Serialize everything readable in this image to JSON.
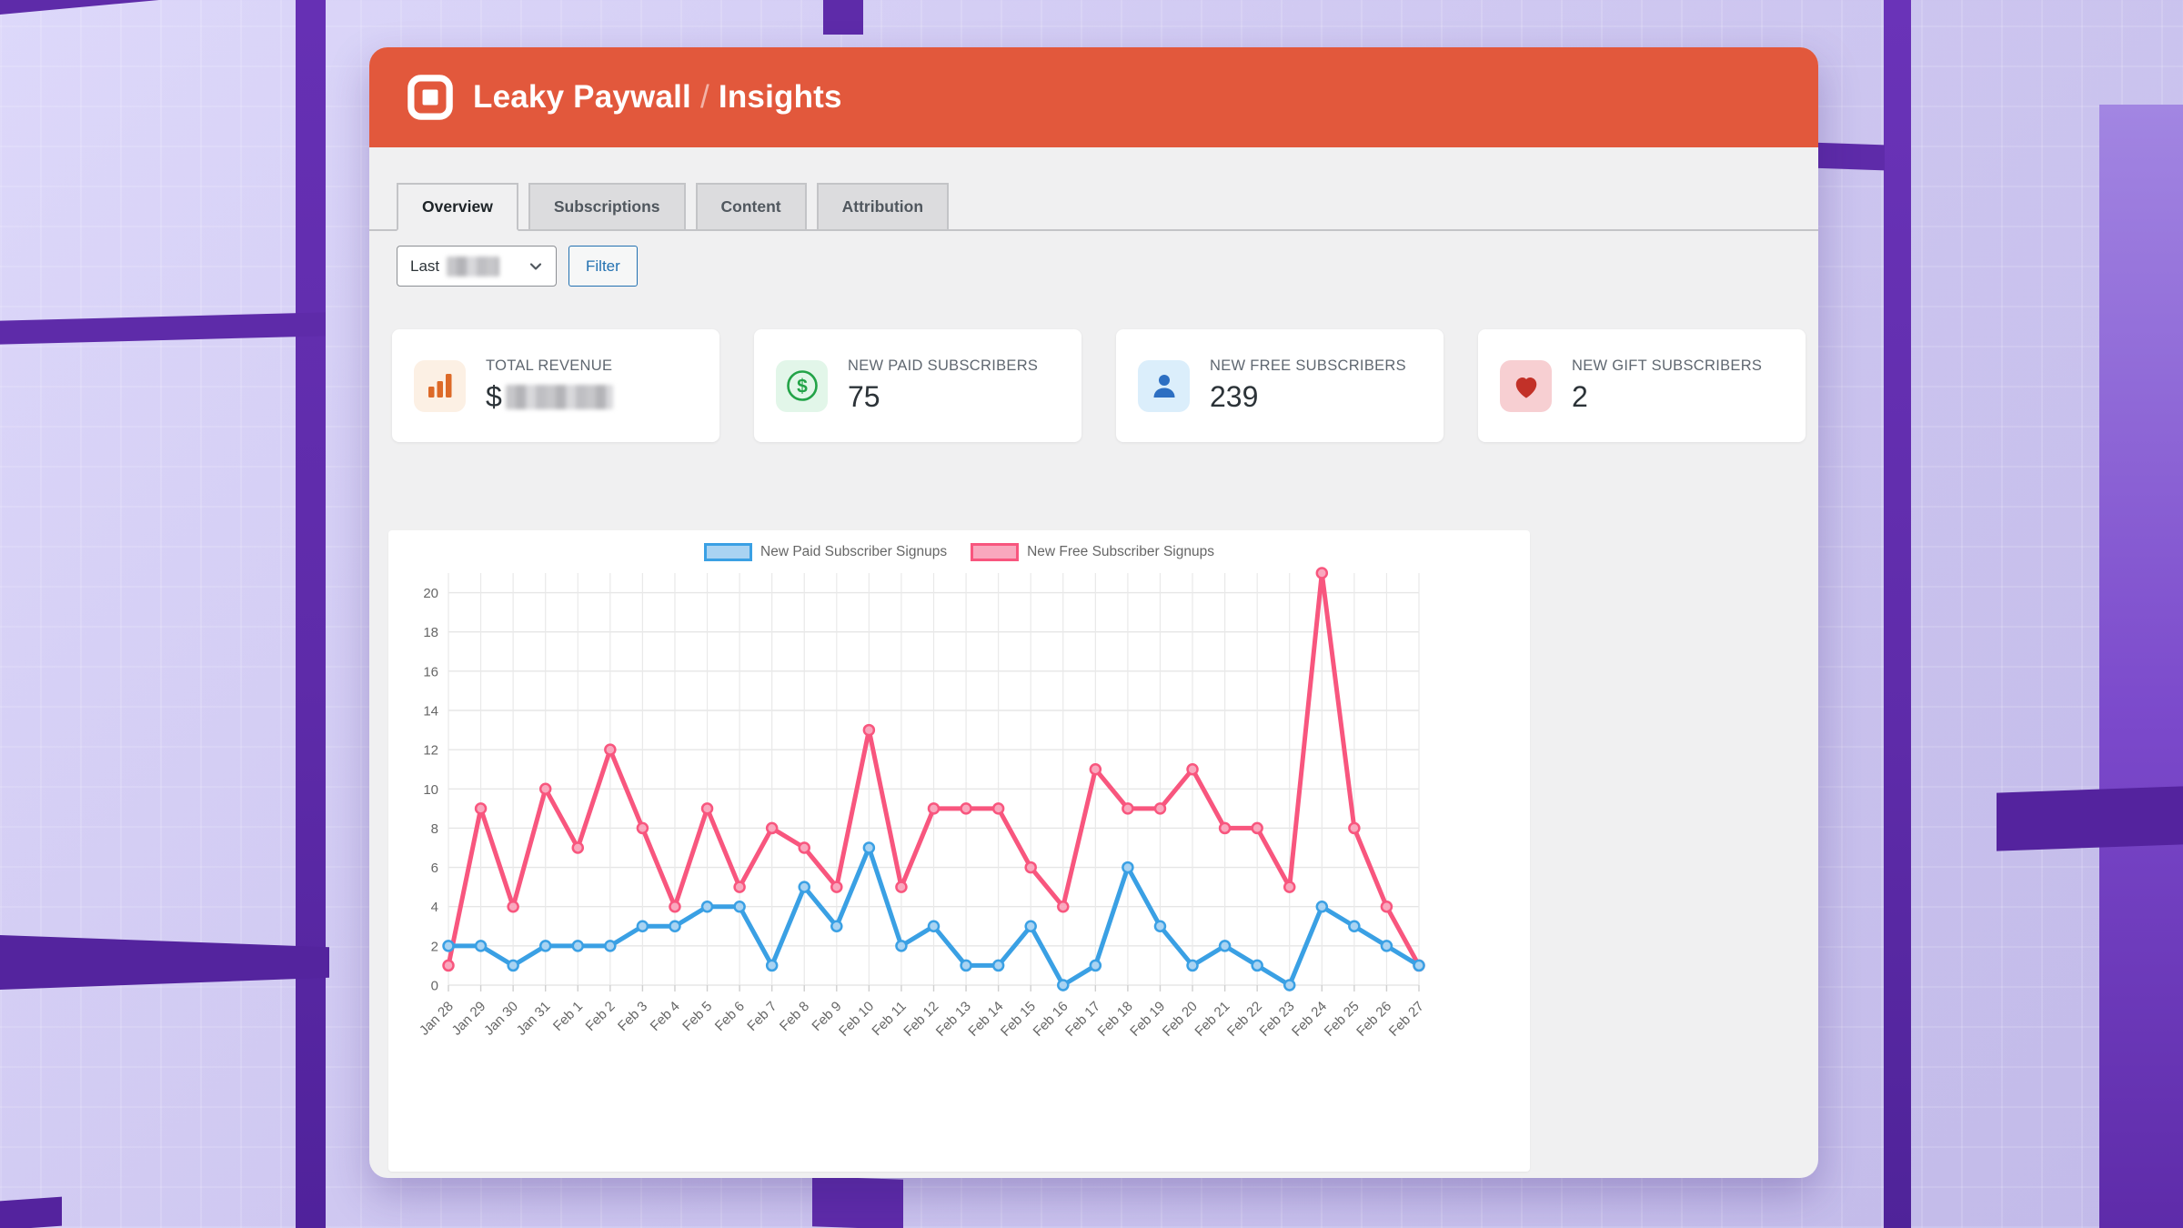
{
  "header": {
    "brand": "Leaky Paywall",
    "separator": "/",
    "page": "Insights"
  },
  "tabs": [
    {
      "label": "Overview",
      "active": true
    },
    {
      "label": "Subscriptions",
      "active": false
    },
    {
      "label": "Content",
      "active": false
    },
    {
      "label": "Attribution",
      "active": false
    }
  ],
  "filter_bar": {
    "range_prefix": "Last",
    "filter_button": "Filter"
  },
  "stats": [
    {
      "label": "TOTAL REVENUE",
      "value": "$",
      "icon": "bar-chart-icon",
      "icon_bg": "#FCF0E4",
      "icon_color": "#DD6A28"
    },
    {
      "label": "NEW PAID SUBSCRIBERS",
      "value": "75",
      "icon": "dollar-icon",
      "icon_bg": "#E2F6E9",
      "icon_color": "#22A347"
    },
    {
      "label": "NEW FREE SUBSCRIBERS",
      "value": "239",
      "icon": "user-icon",
      "icon_bg": "#DBEEFB",
      "icon_color": "#2D6FC2"
    },
    {
      "label": "NEW GIFT SUBSCRIBERS",
      "value": "2",
      "icon": "heart-icon",
      "icon_bg": "#F7CFD2",
      "icon_color": "#C23128"
    }
  ],
  "theme": {
    "header_bg": "#E2583C",
    "panel_bg": "#F0F0F1",
    "accent_blue": "#2271B1",
    "background_purple": "#5E2BA9",
    "background_lavender": "#CFC8F1"
  },
  "chart_data": {
    "type": "line",
    "title": "",
    "categories": [
      "Jan 28",
      "Jan 29",
      "Jan 30",
      "Jan 31",
      "Feb 1",
      "Feb 2",
      "Feb 3",
      "Feb 4",
      "Feb 5",
      "Feb 6",
      "Feb 7",
      "Feb 8",
      "Feb 9",
      "Feb 10",
      "Feb 11",
      "Feb 12",
      "Feb 13",
      "Feb 14",
      "Feb 15",
      "Feb 16",
      "Feb 17",
      "Feb 18",
      "Feb 19",
      "Feb 20",
      "Feb 21",
      "Feb 22",
      "Feb 23",
      "Feb 24",
      "Feb 25",
      "Feb 26",
      "Feb 27"
    ],
    "series": [
      {
        "name": "New Paid Subscriber Signups",
        "color": "#3AA0E4",
        "fill": "#A9D3F2",
        "values": [
          2,
          2,
          1,
          2,
          2,
          2,
          3,
          3,
          4,
          4,
          1,
          5,
          3,
          7,
          2,
          3,
          1,
          1,
          3,
          0,
          1,
          6,
          3,
          1,
          2,
          1,
          0,
          4,
          3,
          2,
          1
        ]
      },
      {
        "name": "New Free Subscriber Signups",
        "color": "#F8567E",
        "fill": "#F9A8BE",
        "values": [
          1,
          9,
          4,
          10,
          7,
          12,
          8,
          4,
          9,
          5,
          8,
          7,
          5,
          13,
          5,
          9,
          9,
          9,
          6,
          4,
          11,
          9,
          9,
          11,
          8,
          8,
          5,
          21,
          8,
          4,
          1
        ]
      }
    ],
    "xlabel": "",
    "ylabel": "",
    "ylim": [
      0,
      21
    ],
    "yticks": [
      0,
      2,
      4,
      6,
      8,
      10,
      12,
      14,
      16,
      18,
      20
    ],
    "grid": true,
    "legend_position": "top"
  }
}
